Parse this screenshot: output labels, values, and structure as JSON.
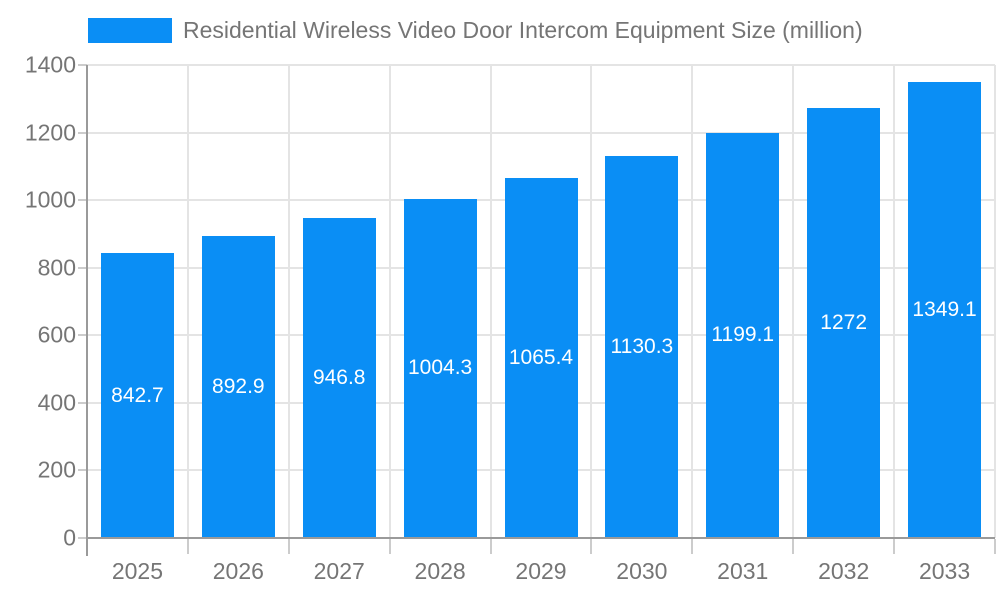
{
  "legend": {
    "label": "Residential Wireless Video Door Intercom Equipment Size (million)"
  },
  "chart_data": {
    "type": "bar",
    "title": "Residential Wireless Video Door Intercom Equipment Size (million)",
    "categories": [
      "2025",
      "2026",
      "2027",
      "2028",
      "2029",
      "2030",
      "2031",
      "2032",
      "2033"
    ],
    "values": [
      842.7,
      892.9,
      946.8,
      1004.3,
      1065.4,
      1130.3,
      1199.1,
      1272,
      1349.1
    ],
    "bar_labels": [
      "842.7",
      "892.9",
      "946.8",
      "1004.3",
      "1065.4",
      "1130.3",
      "1199.1",
      "1272",
      "1349.1"
    ],
    "xlabel": "",
    "ylabel": "",
    "ylim": [
      0,
      1400
    ],
    "yticks": [
      0,
      200,
      400,
      600,
      800,
      1000,
      1200,
      1400
    ],
    "grid": true,
    "legend_position": "top-left",
    "value_labels": "inside-middle",
    "colors": {
      "bar": "#0a8ef5",
      "axis_line": "#9a9a9a",
      "gridline": "#e4e4e4",
      "tick": "#cccccc",
      "text": "#757575",
      "bar_label_text": "#ffffff",
      "background": "#ffffff"
    }
  }
}
